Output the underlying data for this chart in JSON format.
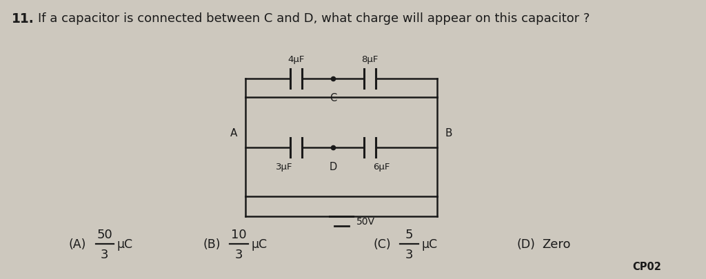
{
  "question_number": "11.",
  "question_text": "If a capacitor is connected between C and D, what charge will appear on this capacitor ?",
  "bg_color": "#cdc8be",
  "text_color": "#1a1a1a",
  "options": [
    {
      "label": "(A)",
      "numerator": "50",
      "denominator": "3",
      "unit": "μC"
    },
    {
      "label": "(B)",
      "numerator": "10",
      "denominator": "3",
      "unit": "μC"
    },
    {
      "label": "(C)",
      "numerator": "5",
      "denominator": "3",
      "unit": "μC"
    },
    {
      "label": "(D)",
      "text": "Zero"
    }
  ],
  "circuit": {
    "left_node": "A",
    "right_node": "B",
    "top_mid_node": "C",
    "bot_mid_node": "D",
    "top_left_cap": "4μF",
    "top_right_cap": "8μF",
    "bot_left_cap": "3μF",
    "bot_right_cap": "6μF",
    "voltage": "50V"
  },
  "footer": "CP02"
}
